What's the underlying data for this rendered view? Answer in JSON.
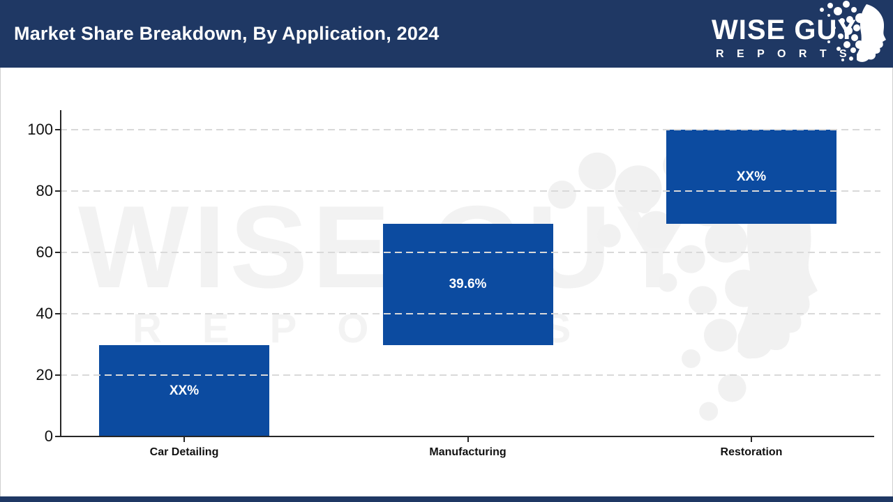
{
  "header": {
    "title": "Market Share Breakdown, By Application, 2024",
    "logo": {
      "line1": "WISE GUY",
      "line2": "R E P O R T S"
    }
  },
  "watermark": {
    "line1": "WISE GUY",
    "line2": "REPORTS"
  },
  "chart_data": {
    "type": "bar",
    "subtype": "waterfall",
    "title": "Market Share Breakdown, By Application, 2024",
    "categories": [
      "Car Detailing",
      "Manufacturing",
      "Restoration"
    ],
    "series": [
      {
        "name": "Market Share",
        "segments": [
          {
            "category": "Car Detailing",
            "start": 0,
            "end": 29.7,
            "label": "XX%"
          },
          {
            "category": "Manufacturing",
            "start": 29.7,
            "end": 69.3,
            "label": "39.6%"
          },
          {
            "category": "Restoration",
            "start": 69.3,
            "end": 100,
            "label": "XX%"
          }
        ]
      }
    ],
    "ylim": [
      0,
      106
    ],
    "yticks": [
      0,
      20,
      40,
      60,
      80,
      100
    ],
    "grid": "horizontal-dashed",
    "legend": "none",
    "xlabel": "",
    "ylabel": ""
  },
  "colors": {
    "header_bg": "#1f3864",
    "footer_bg": "#1f3864",
    "bar": "#0c4ba0",
    "bar_label": "#ffffff",
    "grid": "#d9d9d9",
    "axis": "#262626",
    "tick_label": "#111111",
    "watermark": "#f2f2f2"
  }
}
